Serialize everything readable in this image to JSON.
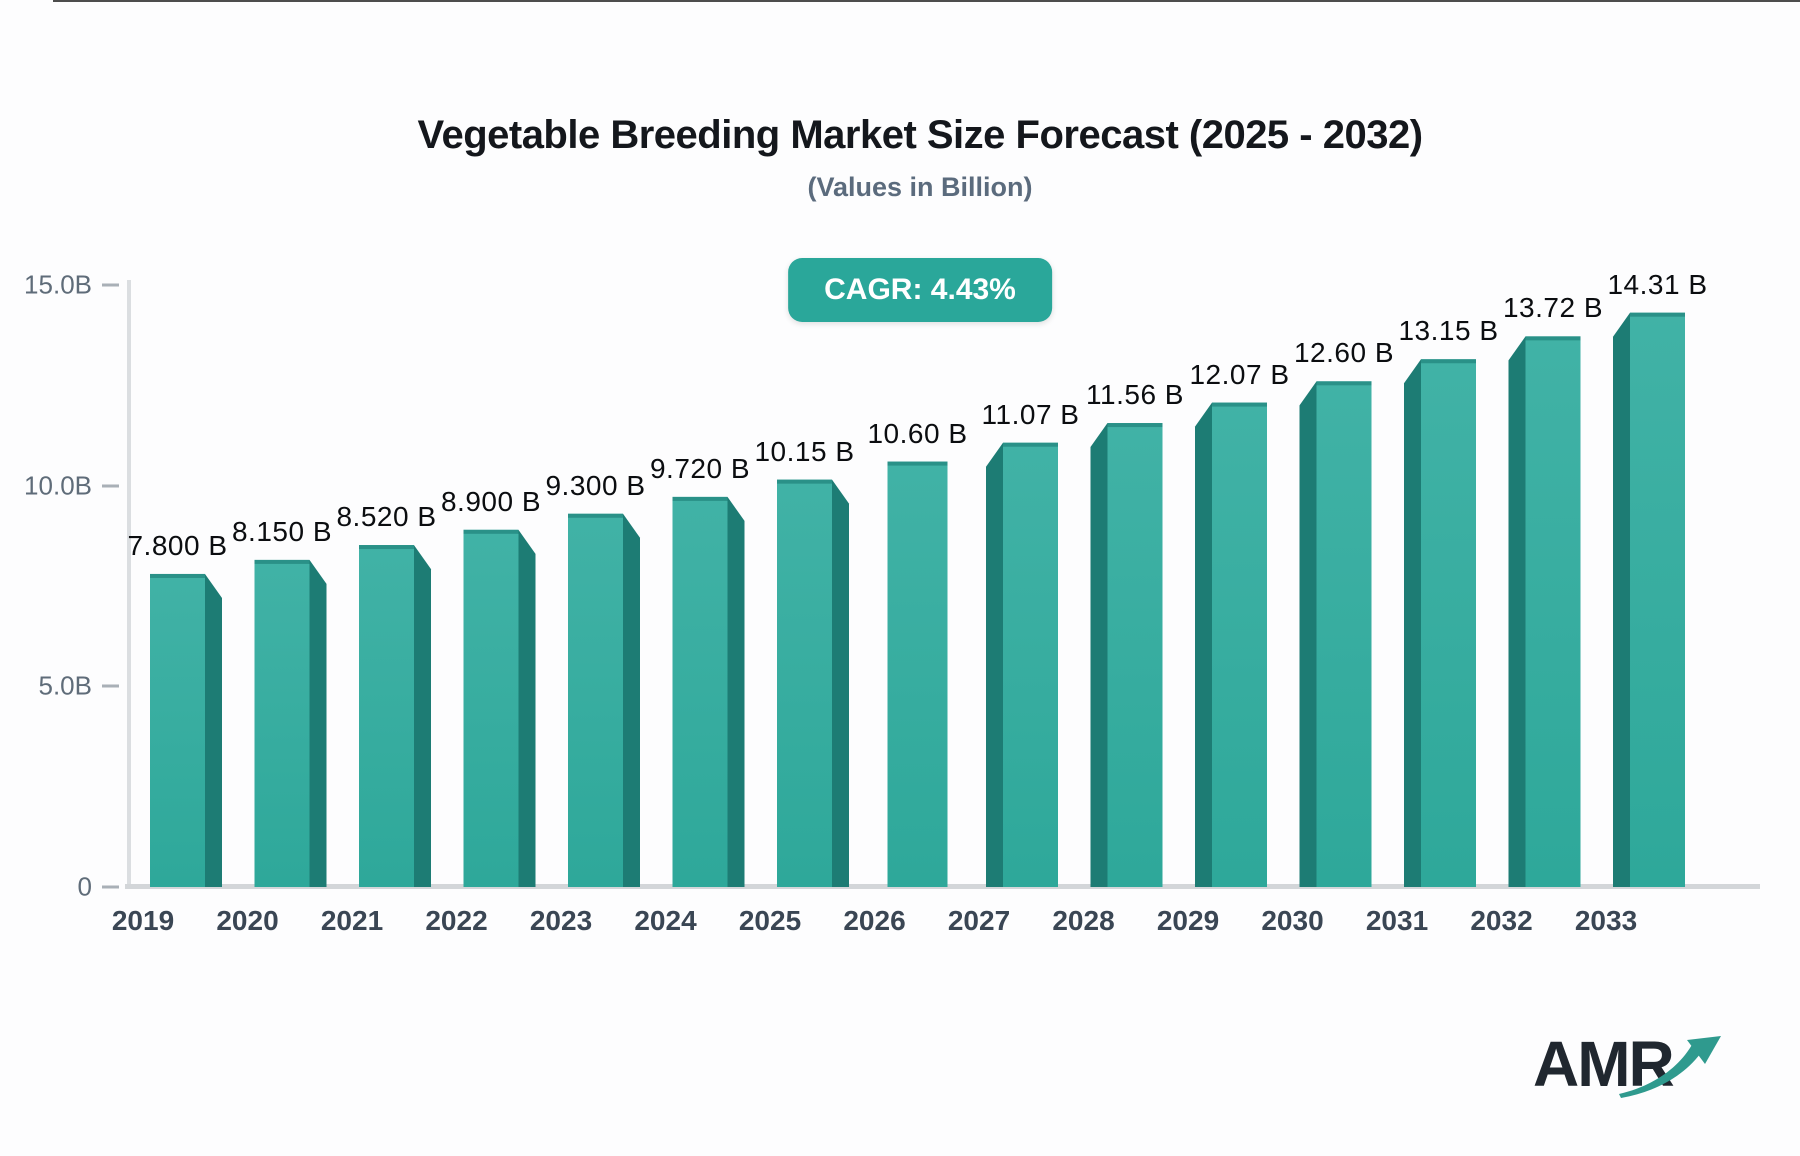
{
  "header": {
    "title": "Vegetable Breeding Market Size Forecast (2025 - 2032)",
    "subtitle": "(Values in Billion)",
    "cagr_badge": "CAGR: 4.43%"
  },
  "colors": {
    "badge_bg": "#2aa79a",
    "bar_face_top": "#41b2a6",
    "bar_face_bottom": "#2ea89a",
    "bar_side": "#1d7c74",
    "bar_top_edge": "#2a9188",
    "axis_line": "#dbdee1",
    "title_color": "#14171c",
    "subtitle_color": "#5b6b7d"
  },
  "chart_data": {
    "type": "bar",
    "title": "Vegetable Breeding Market Size Forecast (2025 - 2032)",
    "subtitle": "(Values in Billion)",
    "cagr_pct": 4.43,
    "unit": "Billion",
    "categories": [
      "2019",
      "2020",
      "2021",
      "2022",
      "2023",
      "2024",
      "2025",
      "2026",
      "2027",
      "2028",
      "2029",
      "2030",
      "2031",
      "2032",
      "2033"
    ],
    "values": [
      7.8,
      8.15,
      8.52,
      8.9,
      9.3,
      9.72,
      10.15,
      10.6,
      11.07,
      11.56,
      12.07,
      12.6,
      13.15,
      13.72,
      14.31
    ],
    "value_labels": [
      "7.800 B",
      "8.150 B",
      "8.520 B",
      "8.900 B",
      "9.300 B",
      "9.720 B",
      "10.15 B",
      "10.60 B",
      "11.07 B",
      "11.56 B",
      "12.07 B",
      "12.60 B",
      "13.15 B",
      "13.72 B",
      "14.31 B"
    ],
    "ylim": [
      0,
      15
    ],
    "yticks": [
      {
        "value": 0,
        "label": "0"
      },
      {
        "value": 5,
        "label": "5.0B"
      },
      {
        "value": 10,
        "label": "10.0B"
      },
      {
        "value": 15,
        "label": "15.0B"
      }
    ],
    "grid": false,
    "legend": false,
    "bar_style": "3d-beveled",
    "xlabel": "",
    "ylabel": ""
  },
  "logo": {
    "text": "AMR"
  }
}
